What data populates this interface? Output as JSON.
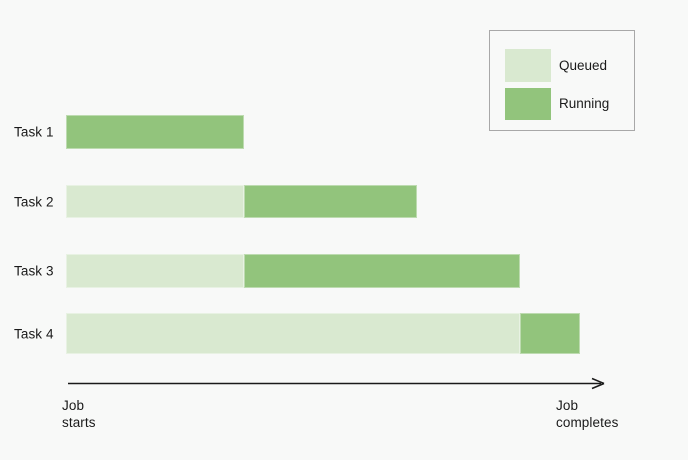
{
  "chart_data": {
    "type": "gantt",
    "title": "",
    "description": "Job task timeline showing queued vs running phases for four tasks",
    "states": {
      "queued": "#d9e9d0",
      "running": "#92c47c"
    },
    "tasks": [
      {
        "label": "Task 1",
        "segments": [
          {
            "state": "running",
            "start_pct": 0,
            "end_pct": 33.1
          }
        ]
      },
      {
        "label": "Task 2",
        "segments": [
          {
            "state": "queued",
            "start_pct": 0,
            "end_pct": 33.0
          },
          {
            "state": "running",
            "start_pct": 33.0,
            "end_pct": 65.2
          }
        ]
      },
      {
        "label": "Task 3",
        "segments": [
          {
            "state": "queued",
            "start_pct": 0,
            "end_pct": 33.0
          },
          {
            "state": "running",
            "start_pct": 33.0,
            "end_pct": 84.3
          }
        ]
      },
      {
        "label": "Task 4",
        "segments": [
          {
            "state": "queued",
            "start_pct": 0,
            "end_pct": 84.3
          },
          {
            "state": "running",
            "start_pct": 84.3,
            "end_pct": 95.5
          }
        ]
      }
    ],
    "x_axis": {
      "arrow": true,
      "start_label": "Job\nstarts",
      "end_label": "Job\ncompletes"
    },
    "legend": {
      "position": "top-right",
      "entries": [
        {
          "label": "Queued",
          "state": "queued"
        },
        {
          "label": "Running",
          "state": "running"
        }
      ]
    },
    "colors": {
      "background": "#f8f9f8",
      "text": "#1a1a1a",
      "axis": "#1a1a1a",
      "legend_border": "#a8a8a8"
    }
  }
}
